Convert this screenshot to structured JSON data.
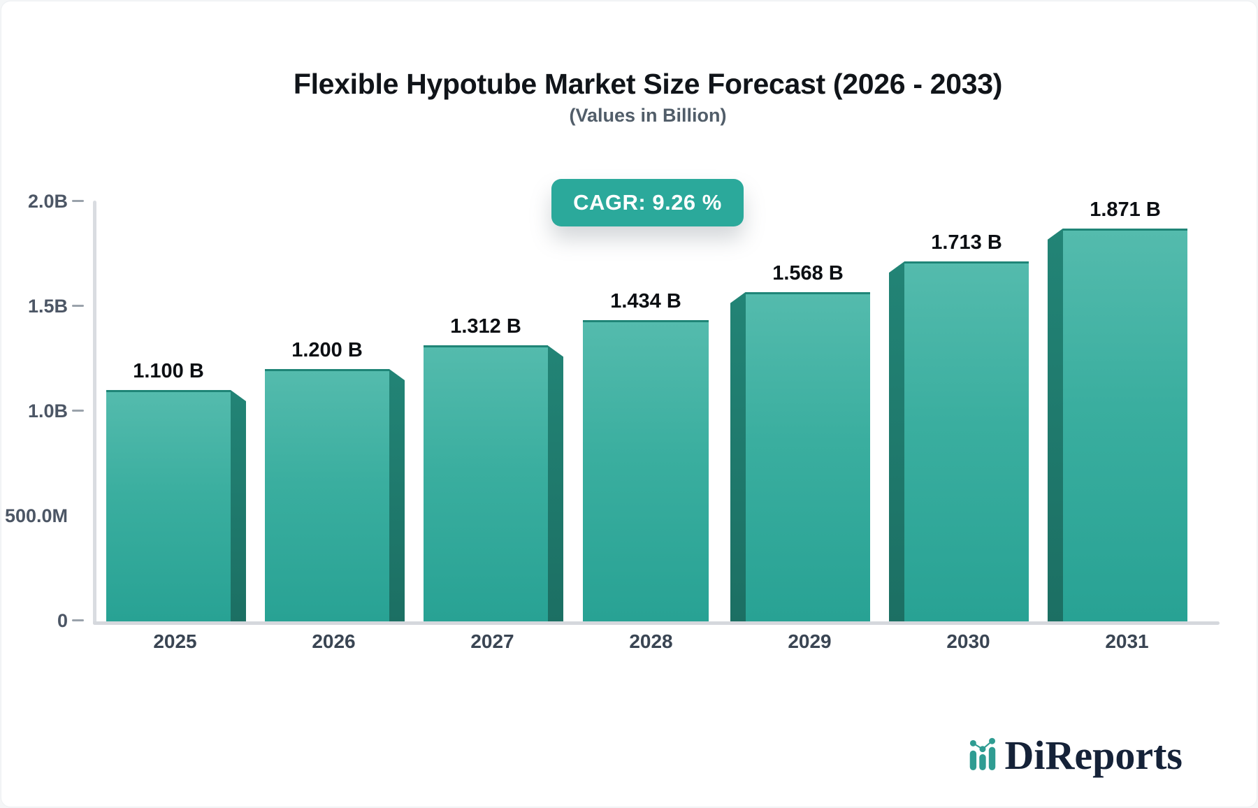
{
  "header": {
    "title": "Flexible Hypotube Market Size Forecast (2026 - 2033)",
    "subtitle": "(Values in Billion)"
  },
  "badge": {
    "label": "CAGR: 9.26 %"
  },
  "chart_data": {
    "type": "bar",
    "title": "Flexible Hypotube Market Size Forecast (2026 - 2033)",
    "subtitle": "(Values in Billion)",
    "categories": [
      "2025",
      "2026",
      "2027",
      "2028",
      "2029",
      "2030",
      "2031"
    ],
    "values": [
      1.1,
      1.2,
      1.312,
      1.434,
      1.568,
      1.713,
      1.871
    ],
    "value_labels": [
      "1.100 B",
      "1.200 B",
      "1.312 B",
      "1.434 B",
      "1.568 B",
      "1.713 B",
      "1.871 B"
    ],
    "unit": "Billion",
    "ylim": [
      0,
      2.0
    ],
    "yticks": [
      {
        "label": "2.0B",
        "value": 2.0,
        "tick": true
      },
      {
        "label": "1.5B",
        "value": 1.5,
        "tick": true
      },
      {
        "label": "1.0B",
        "value": 1.0,
        "tick": true
      },
      {
        "label": "500.0M",
        "value": 0.5,
        "tick": false
      },
      {
        "label": "0",
        "value": 0.0,
        "tick": true
      }
    ],
    "grid": false,
    "legend": false,
    "colors": {
      "bar_face_top": "#54bbad",
      "bar_face_bottom": "#28a294",
      "bar_side": "#1f7d6f",
      "badge_bg": "#2ba99b",
      "axis_line": "#d5d8dd",
      "label_text": "#0c0f13"
    }
  },
  "logo": {
    "text": "DiReports",
    "icon": "mini-bar-chart-icon",
    "icon_color": "#2f9c92"
  }
}
